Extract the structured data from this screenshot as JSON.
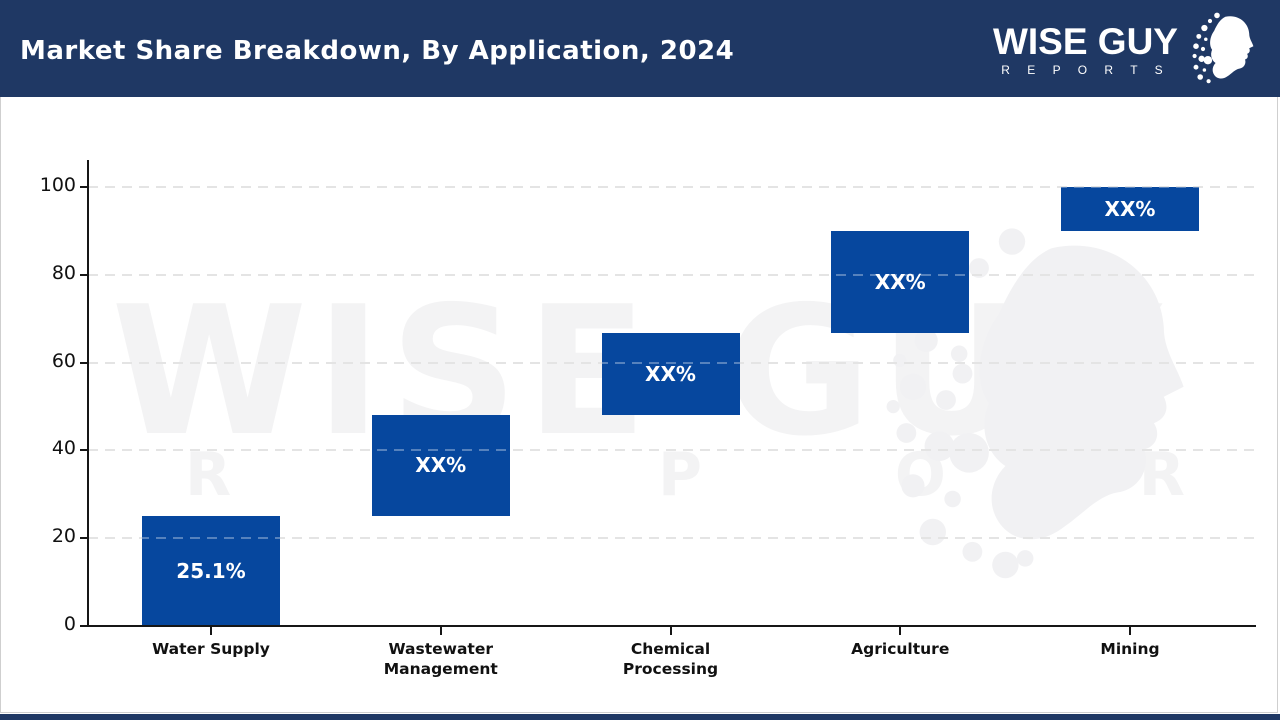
{
  "header": {
    "title": "Market Share Breakdown, By Application, 2024",
    "logo": {
      "wordmark": "WISE GUY",
      "sub": "R E P O R T S"
    }
  },
  "watermark": {
    "wordmark": "WISE GUY",
    "sub": "R E P O R T S"
  },
  "chart_data": {
    "type": "bar",
    "subtype": "waterfall-floating-bars",
    "title": "Market Share Breakdown, By Application, 2024",
    "categories": [
      "Water Supply",
      "Wastewater Management",
      "Chemical Processing",
      "Agriculture",
      "Mining"
    ],
    "series": [
      {
        "name": "Market share (%)",
        "segments": [
          {
            "category": "Water Supply",
            "start": 0,
            "end": 25.1,
            "label": "25.1%"
          },
          {
            "category": "Wastewater Management",
            "start": 25.1,
            "end": 48.1,
            "label": "XX%"
          },
          {
            "category": "Chemical Processing",
            "start": 48.1,
            "end": 66.7,
            "label": "XX%"
          },
          {
            "category": "Agriculture",
            "start": 66.7,
            "end": 90,
            "label": "XX%"
          },
          {
            "category": "Mining",
            "start": 90,
            "end": 100,
            "label": "XX%"
          }
        ]
      }
    ],
    "xlabel": "",
    "ylabel": "",
    "yticks": [
      0,
      20,
      40,
      60,
      80,
      100
    ],
    "ylim": [
      0,
      106
    ],
    "grid": "horizontal-dashed",
    "legend": "none"
  },
  "colors": {
    "header_bg": "#1F3864",
    "footer_bg": "#1F3864",
    "bar": "#06479E",
    "bar_label": "#ffffff",
    "grid": "#d7d7d7",
    "axis": "#161616",
    "watermark": "#f3f3f4",
    "card_border": "#cfcfcf"
  }
}
